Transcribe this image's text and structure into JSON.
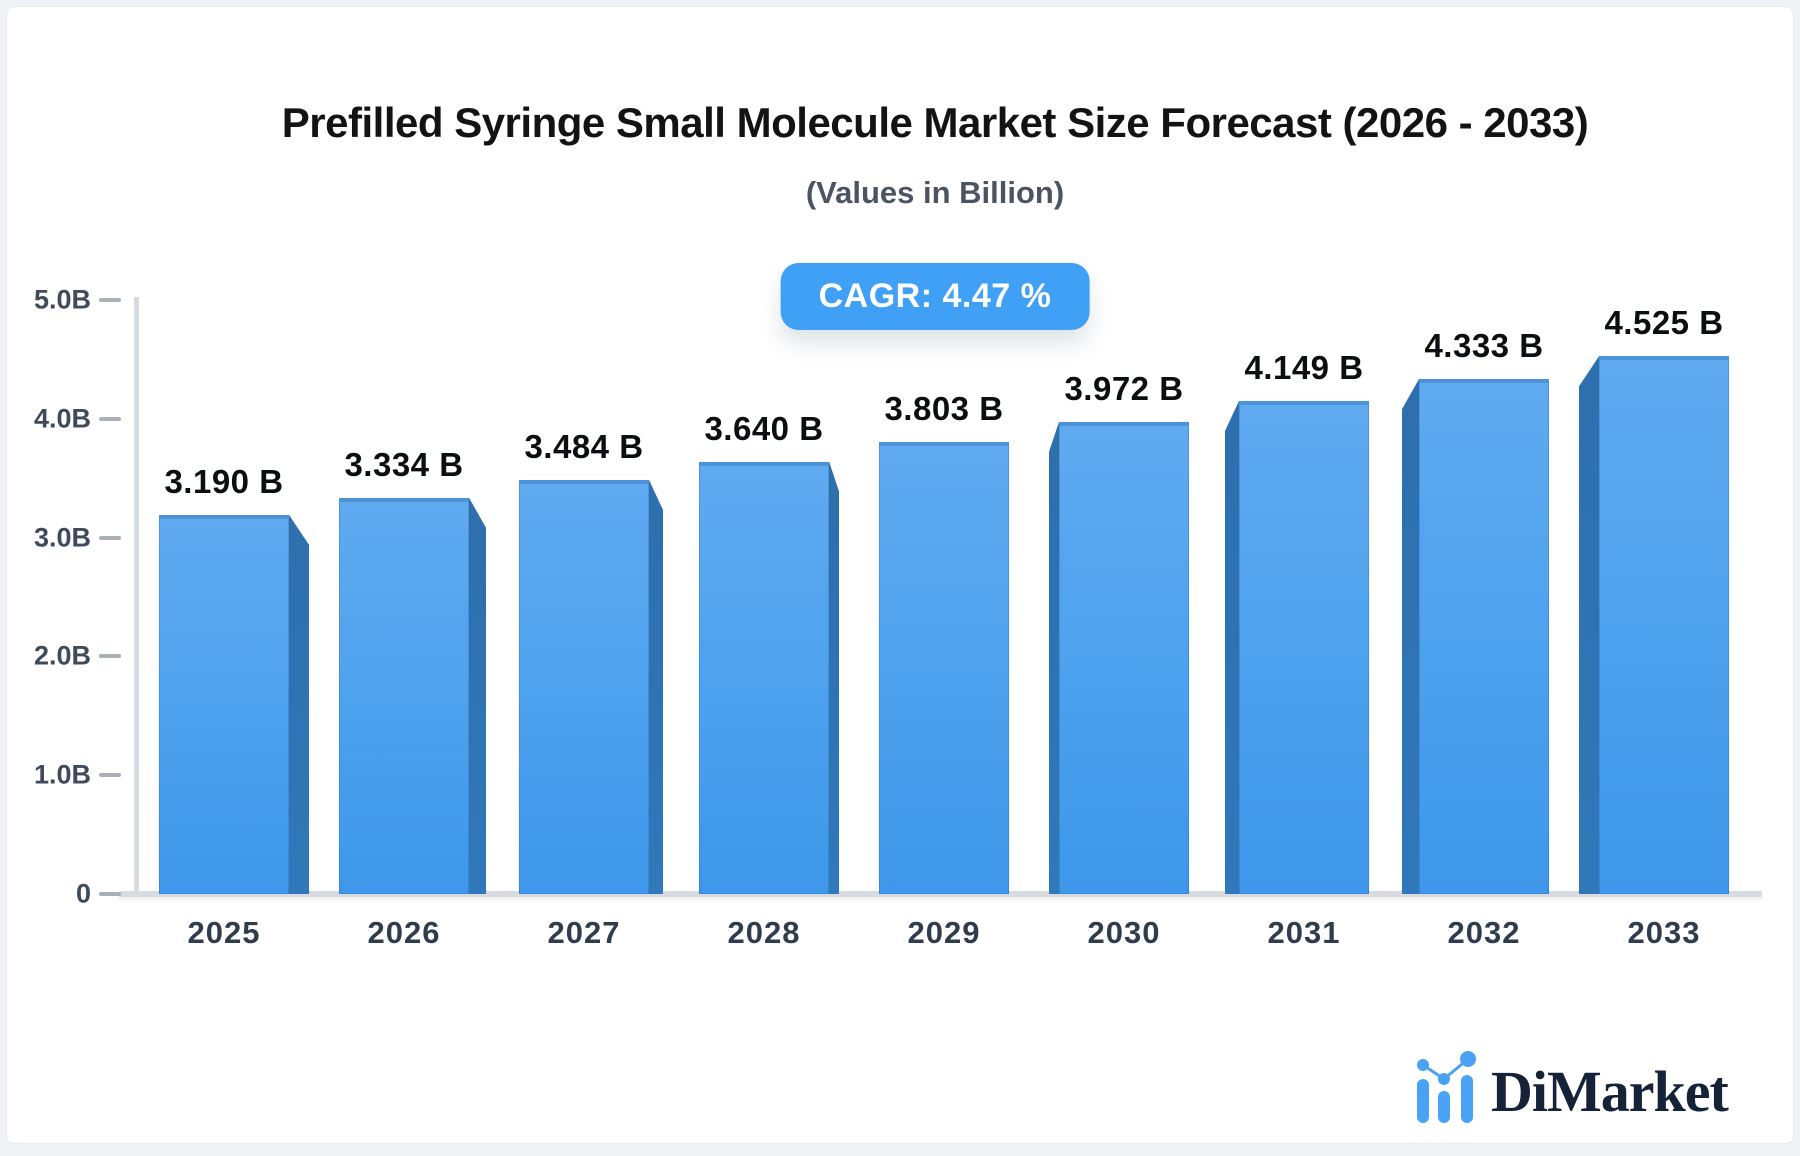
{
  "header": {
    "title": "Prefilled Syringe Small Molecule Market Size Forecast (2026 - 2033)",
    "subtitle": "(Values in Billion)"
  },
  "badge": {
    "label": "CAGR: 4.47 %"
  },
  "logo": {
    "text": "DiMarket",
    "icon": "bar-chart-logo-icon"
  },
  "colors": {
    "bar_face_top": "#60aaf0",
    "bar_face_bottom": "#3e97ea",
    "bar_side": "#2f73b3",
    "badge_bg": "#3fa0f5",
    "axis_line": "#d7dbe0",
    "logo_blue": "#4aa2f4",
    "logo_navy": "#152238"
  },
  "chart_data": {
    "type": "bar",
    "title": "Prefilled Syringe Small Molecule Market Size Forecast (2026 - 2033)",
    "subtitle": "(Values in Billion)",
    "categories": [
      "2025",
      "2026",
      "2027",
      "2028",
      "2029",
      "2030",
      "2031",
      "2032",
      "2033"
    ],
    "values": [
      3.19,
      3.334,
      3.484,
      3.64,
      3.803,
      3.972,
      4.149,
      4.333,
      4.525
    ],
    "bar_labels": [
      "3.190 B",
      "3.334 B",
      "3.484 B",
      "3.640 B",
      "3.803 B",
      "3.972 B",
      "4.149 B",
      "4.333 B",
      "4.525 B"
    ],
    "unit": "Billion",
    "y_ticks": [
      {
        "label": "5.0B",
        "value": 5.0
      },
      {
        "label": "4.0B",
        "value": 4.0
      },
      {
        "label": "3.0B",
        "value": 3.0
      },
      {
        "label": "2.0B",
        "value": 2.0
      },
      {
        "label": "1.0B",
        "value": 1.0
      },
      {
        "label": "0",
        "value": 0.0
      }
    ],
    "ylim": [
      0,
      5
    ],
    "grid": false,
    "legend": false,
    "cagr": "4.47 %"
  }
}
